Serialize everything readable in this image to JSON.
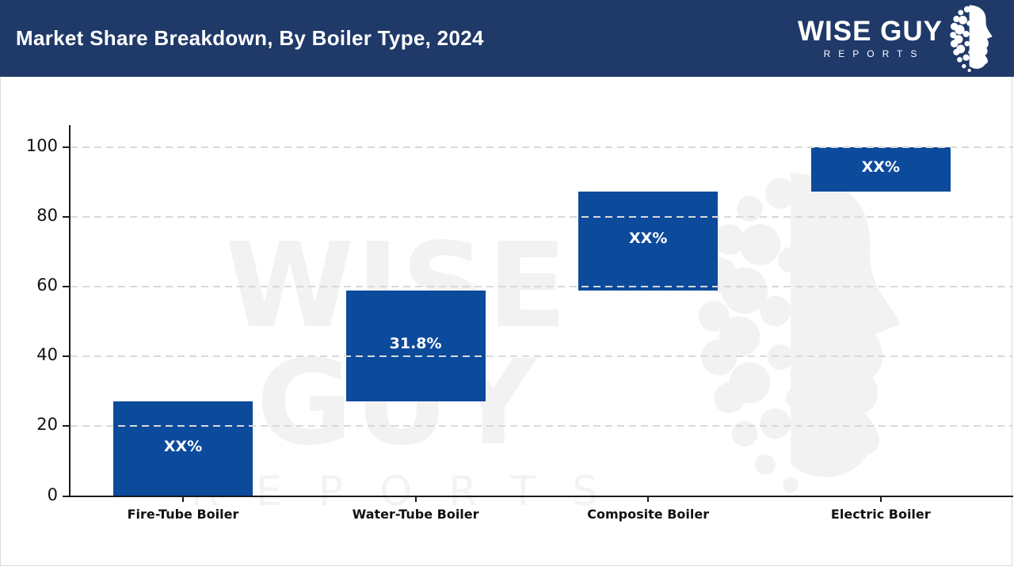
{
  "header": {
    "title": "Market Share Breakdown, By Boiler Type, 2024",
    "logo": {
      "line1": "WISE GUY",
      "line2": "REPORTS"
    }
  },
  "watermark": {
    "line1": "WISE GUY",
    "line2": "REPORTS"
  },
  "colors": {
    "header_bg": "#1f3969",
    "bar_blue": "#0c4a9c",
    "axis": "#1a1a1a",
    "grid": "#d9d9d9",
    "text": "#111111",
    "bar_label": "#ffffff",
    "watermark": "#f2f2f2",
    "panel_border": "#d9d9d9"
  },
  "chart_data": {
    "type": "bar",
    "variant": "waterfall-floating-segments",
    "title": "Market Share Breakdown, By Boiler Type, 2024",
    "categories": [
      "Fire-Tube Boiler",
      "Water-Tube Boiler",
      "Composite Boiler",
      "Electric Boiler"
    ],
    "segments": [
      {
        "category": "Fire-Tube Boiler",
        "start": 0,
        "end": 27.2,
        "label": "XX%"
      },
      {
        "category": "Water-Tube Boiler",
        "start": 27.2,
        "end": 59.0,
        "label": "31.8%"
      },
      {
        "category": "Composite Boiler",
        "start": 59.0,
        "end": 87.2,
        "label": "XX%"
      },
      {
        "category": "Electric Boiler",
        "start": 87.2,
        "end": 100,
        "label": "XX%"
      }
    ],
    "xlabel": "",
    "ylabel": "",
    "ylim": [
      0,
      100
    ],
    "yticks": [
      0,
      20,
      40,
      60,
      80,
      100
    ],
    "grid": "dashed-horizontal",
    "legend": "none",
    "bar_color": "#0c4a9c",
    "label_color": "#ffffff"
  }
}
